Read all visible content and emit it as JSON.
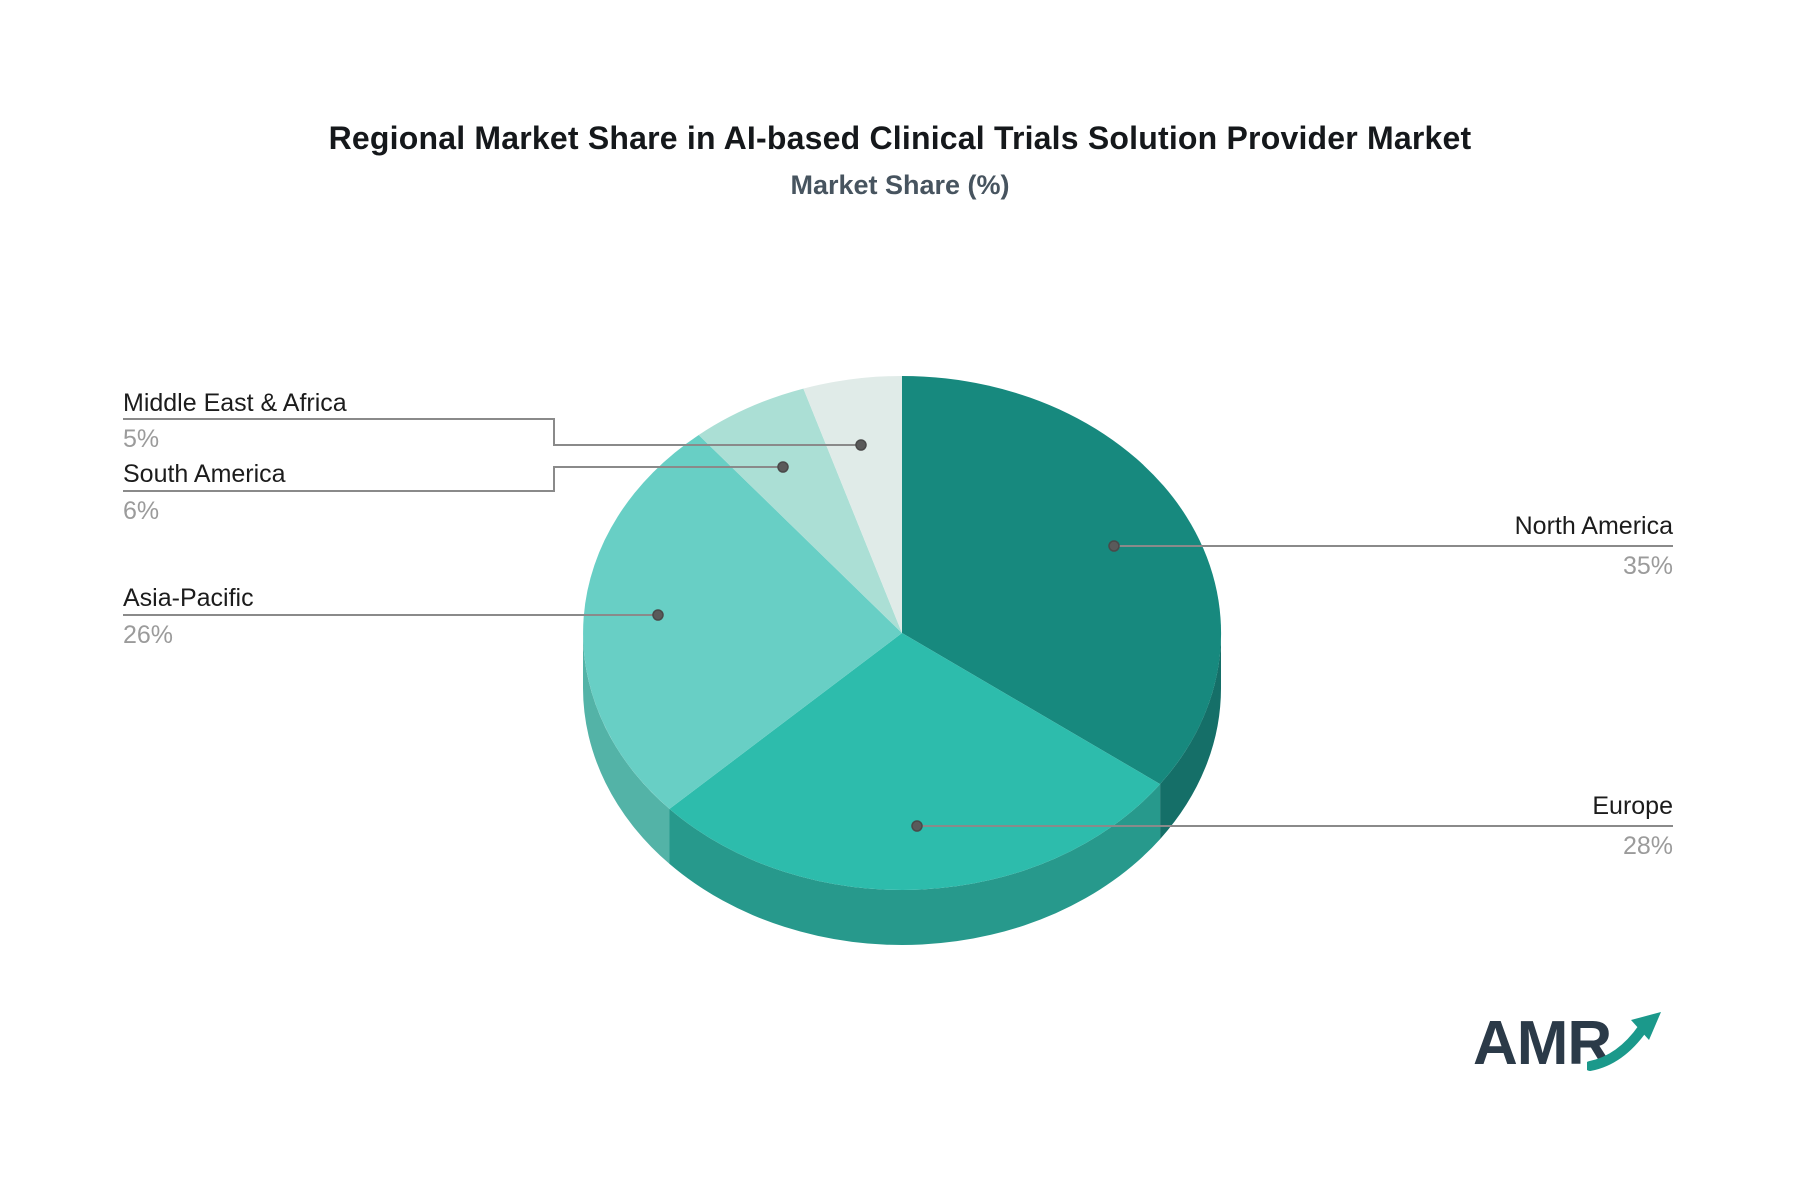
{
  "header": {
    "title": "Regional Market Share in AI-based Clinical Trials Solution Provider Market",
    "subtitle": "Market Share (%)"
  },
  "chart_data": {
    "type": "pie",
    "style": "3d",
    "title": "Regional Market Share in AI-based Clinical Trials Solution Provider Market",
    "subtitle": "Market Share (%)",
    "unit": "%",
    "direction": "clockwise",
    "start_angle_deg": 0,
    "legend_position": "callout-labels",
    "series": [
      {
        "name": "North America",
        "value": 35,
        "color": "#17897E",
        "side_color": "#156F68"
      },
      {
        "name": "Europe",
        "value": 28,
        "color": "#2DBCAC",
        "side_color": "#27998C"
      },
      {
        "name": "Asia-Pacific",
        "value": 26,
        "color": "#68CFC5",
        "side_color": "#53B3A7"
      },
      {
        "name": "South America",
        "value": 6,
        "color": "#ABDFD5",
        "side_color": "#8FC9BE"
      },
      {
        "name": "Middle East & Africa",
        "value": 5,
        "color": "#E0EBE8",
        "side_color": "#C2D6D0"
      }
    ]
  },
  "callouts": {
    "north_america": {
      "label": "North America",
      "pct": "35%"
    },
    "europe": {
      "label": "Europe",
      "pct": "28%"
    },
    "asia_pacific": {
      "label": "Asia-Pacific",
      "pct": "26%"
    },
    "south_america": {
      "label": "South America",
      "pct": "6%"
    },
    "middle_east_africa": {
      "label": "Middle East & Africa",
      "pct": "5%"
    }
  },
  "logo": {
    "text": "AMR"
  },
  "colors": {
    "leader_line": "#8A8A8A",
    "dot": "#5A5A5A",
    "dot_ring": "#4A4A4A",
    "label_text": "#1C1C1C",
    "pct_text": "#9B9B9B",
    "title_text": "#15181B",
    "subtitle_text": "#47545F",
    "logo_text": "#2B3A48",
    "logo_arrow": "#1B998B"
  }
}
